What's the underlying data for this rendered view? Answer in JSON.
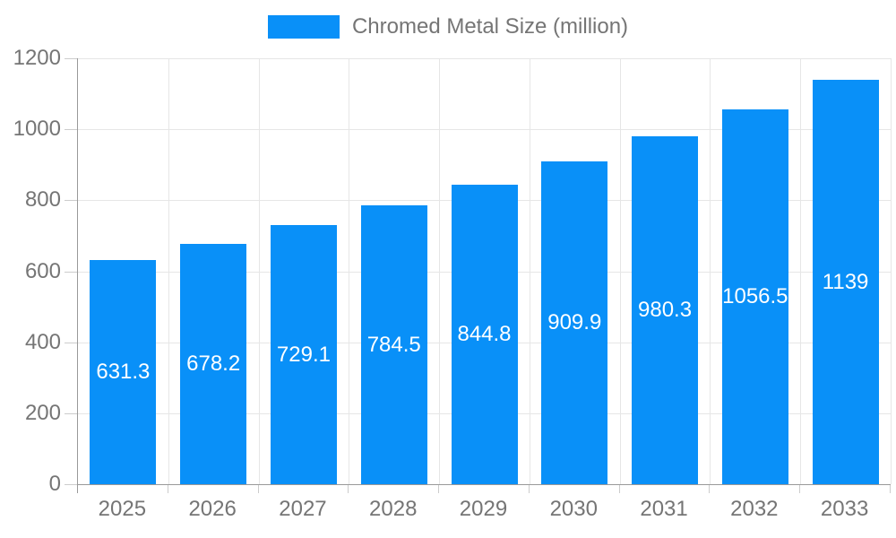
{
  "chart_data": {
    "type": "bar",
    "title": "Chromed Metal Size (million)",
    "legend_position": "top",
    "categories": [
      "2025",
      "2026",
      "2027",
      "2028",
      "2029",
      "2030",
      "2031",
      "2032",
      "2033"
    ],
    "values": [
      631.3,
      678.2,
      729.1,
      784.5,
      844.8,
      909.9,
      980.3,
      1056.5,
      1139
    ],
    "value_labels": [
      "631.3",
      "678.2",
      "729.1",
      "784.5",
      "844.8",
      "909.9",
      "980.3",
      "1056.5",
      "1139"
    ],
    "xlabel": "",
    "ylabel": "",
    "ylim": [
      0,
      1200
    ],
    "yticks": [
      0,
      200,
      400,
      600,
      800,
      1000,
      1200
    ],
    "grid": true,
    "colors": {
      "bar": "#0990f8",
      "value_label": "#ffffff",
      "axis_text": "#757575",
      "grid_line": "#e6e6e6",
      "axis_line": "#999999",
      "tick_line": "#cccccc"
    }
  }
}
